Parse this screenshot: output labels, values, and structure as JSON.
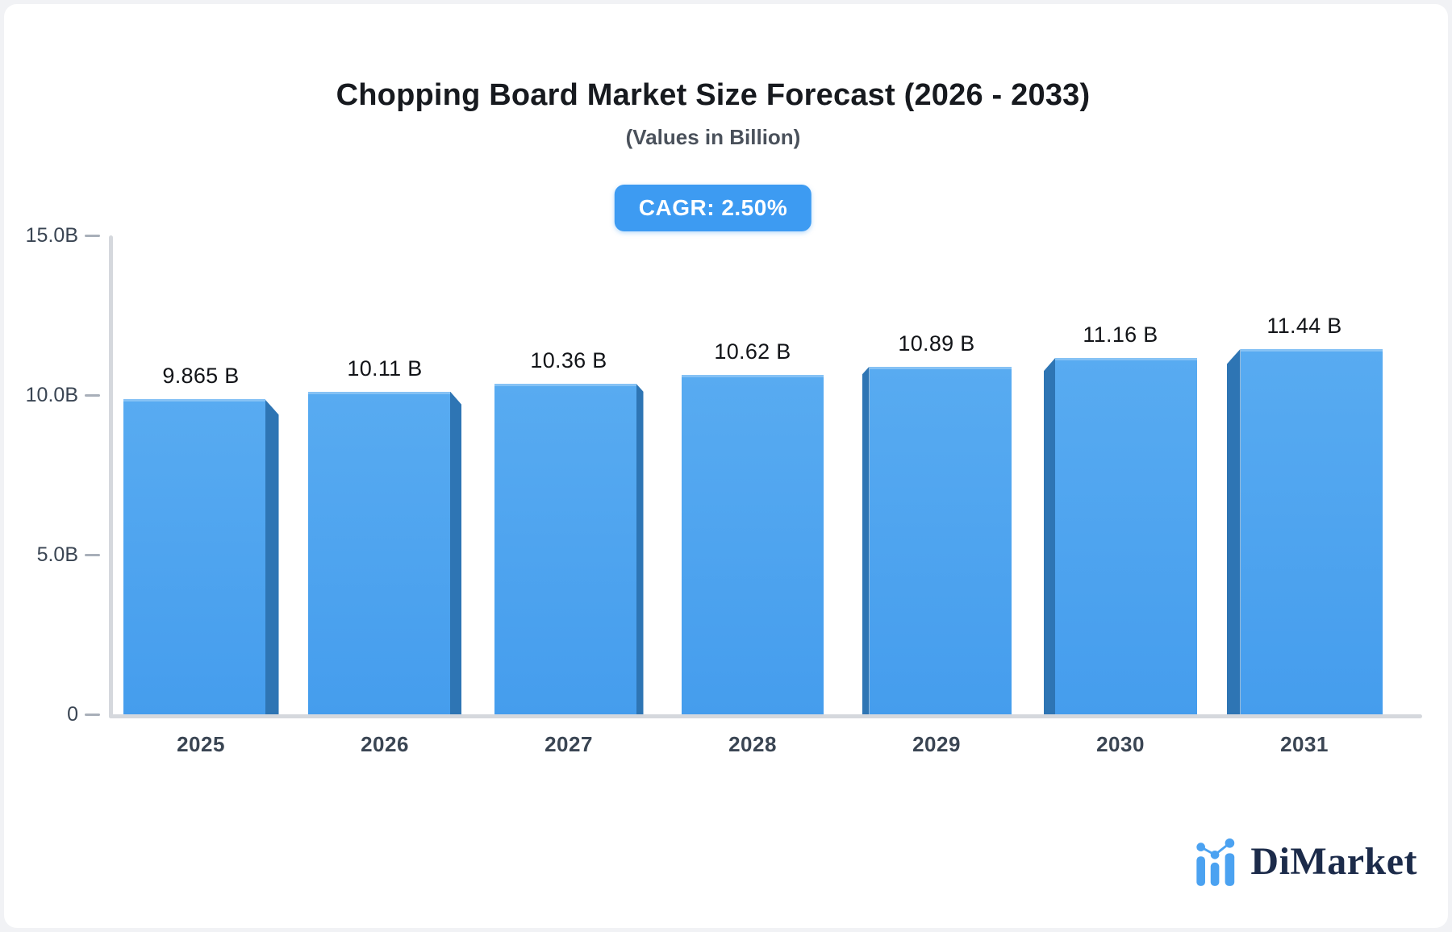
{
  "header": {
    "title": "Chopping Board Market Size Forecast (2026 - 2033)",
    "subtitle": "(Values in Billion)",
    "cagr_badge": "CAGR: 2.50%"
  },
  "chart_data": {
    "type": "bar",
    "title": "Chopping Board Market Size Forecast (2026 - 2033)",
    "subtitle": "(Values in Billion)",
    "cagr_label": "CAGR: 2.50%",
    "categories": [
      "2025",
      "2026",
      "2027",
      "2028",
      "2029",
      "2030",
      "2031"
    ],
    "values": [
      9.865,
      10.11,
      10.36,
      10.62,
      10.89,
      11.16,
      11.44
    ],
    "value_labels": [
      "9.865 B",
      "10.11 B",
      "10.36 B",
      "10.62 B",
      "10.89 B",
      "11.16 B",
      "11.44 B"
    ],
    "ylim": [
      0,
      15
    ],
    "yticks": [
      {
        "value": 15,
        "label": "15.0B"
      },
      {
        "value": 10,
        "label": "10.0B"
      },
      {
        "value": 5,
        "label": "5.0B"
      },
      {
        "value": 0,
        "label": "0"
      }
    ],
    "grid": false,
    "legend": false,
    "bar_style": "3d-perspective, side faces angled toward center"
  },
  "colors": {
    "page_bg": "#F1F2F5",
    "card_bg": "#FFFFFF",
    "title_text": "#171A1F",
    "subtitle_text": "#4A515B",
    "badge_bg": "#3D9BF2",
    "badge_text": "#FFFFFF",
    "bar_face_top": "#58ABF1",
    "bar_face_bottom": "#459DED",
    "bar_side": "#2E75B4",
    "axis_line": "#D5D8DD",
    "tick_mark": "#A8AFB9",
    "axis_text": "#3A4553",
    "value_text": "#121418",
    "logo_navy": "#1C2B4A",
    "logo_blue": "#4BA2F1"
  },
  "logo": {
    "text": "DiMarket"
  }
}
